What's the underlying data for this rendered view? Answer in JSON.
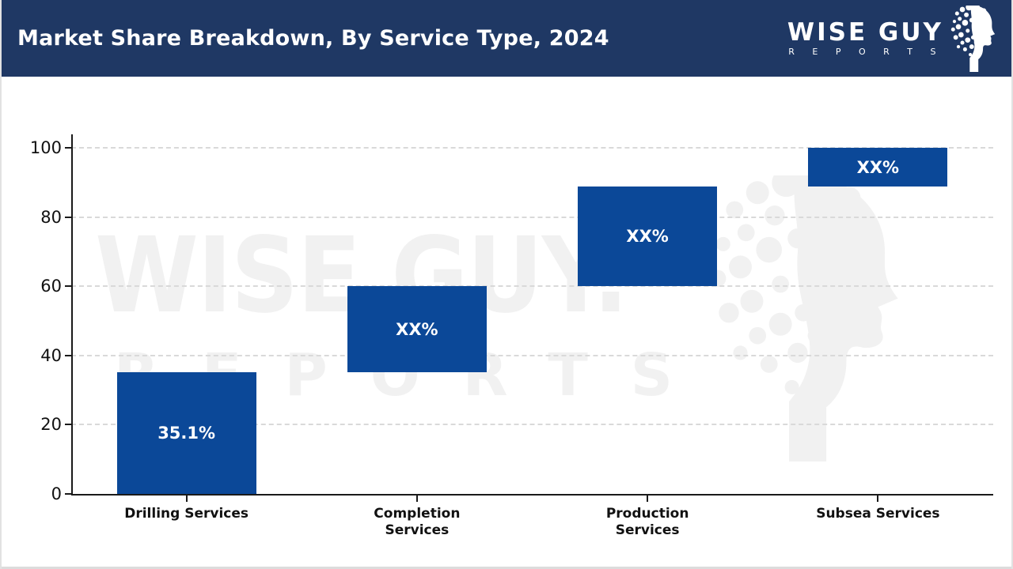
{
  "header": {
    "title": "Market Share Breakdown, By Service Type, 2024",
    "logo": {
      "line1": "WISE GUY",
      "line2": "R E P O R T S"
    }
  },
  "watermark": {
    "line1": "WISE GUY.",
    "line2": "REPORTS"
  },
  "chart_data": {
    "type": "bar",
    "subtype": "stacked-waterfall",
    "title": "Market Share Breakdown, By Service Type, 2024",
    "xlabel": "",
    "ylabel": "",
    "ylim": [
      0,
      100
    ],
    "yticks": [
      0,
      20,
      40,
      60,
      80,
      100
    ],
    "grid": "horizontal-dashed",
    "legend": "none",
    "categories": [
      "Drilling Services",
      "Completion Services",
      "Production Services",
      "Subsea Services"
    ],
    "series": [
      {
        "name": "Drilling Services",
        "name_lines": [
          "Drilling Services"
        ],
        "start": 0,
        "end": 35.1,
        "value": 35.1,
        "label": "35.1%"
      },
      {
        "name": "Completion Services",
        "name_lines": [
          "Completion",
          "Services"
        ],
        "start": 35.1,
        "end": 60.0,
        "value": 24.9,
        "label": "XX%"
      },
      {
        "name": "Production Services",
        "name_lines": [
          "Production",
          "Services"
        ],
        "start": 60.0,
        "end": 88.8,
        "value": 28.8,
        "label": "XX%"
      },
      {
        "name": "Subsea Services",
        "name_lines": [
          "Subsea Services"
        ],
        "start": 88.8,
        "end": 100.0,
        "value": 11.2,
        "label": "XX%"
      }
    ],
    "bar_color": "#0b4898",
    "bar_label_color": "#ffffff"
  },
  "colors": {
    "header_bg": "#1f3864",
    "bar": "#0b4898",
    "watermark": "#f1f1f1",
    "axis": "#1a1a1a",
    "grid": "#d9d9d9"
  }
}
